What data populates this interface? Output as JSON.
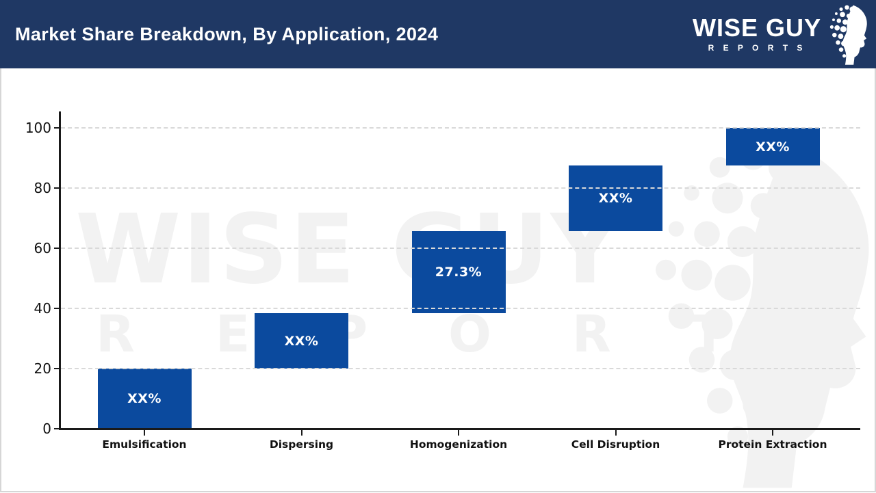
{
  "header": {
    "title": "Market Share Breakdown, By Application, 2024",
    "bg_color": "#1f3864",
    "logo": {
      "wordmark": "WISE GUY",
      "subtext": "R E P O R T S"
    }
  },
  "watermark": {
    "wordmark": "WISE GUY",
    "subtext": "R E P O R T S"
  },
  "chart_data": {
    "type": "bar",
    "subtype": "floating-waterfall",
    "title": "Market Share Breakdown, By Application, 2024",
    "categories": [
      "Emulsification",
      "Dispersing",
      "Homogenization",
      "Cell Disruption",
      "Protein Extraction"
    ],
    "segments": [
      {
        "category": "Emulsification",
        "start": 0,
        "end": 20,
        "label": "XX%"
      },
      {
        "category": "Dispersing",
        "start": 20,
        "end": 38.4,
        "label": "XX%"
      },
      {
        "category": "Homogenization",
        "start": 38.4,
        "end": 65.7,
        "label": "27.3%"
      },
      {
        "category": "Cell Disruption",
        "start": 65.7,
        "end": 87.5,
        "label": "XX%"
      },
      {
        "category": "Protein Extraction",
        "start": 87.5,
        "end": 100,
        "label": "XX%"
      }
    ],
    "yticks": [
      0,
      20,
      40,
      60,
      80,
      100
    ],
    "ylim": [
      0,
      105
    ],
    "xlabel": "",
    "ylabel": "",
    "grid": "horizontal-dashed-over-bars",
    "legend": "none",
    "colors": {
      "bar": "#0b4a9e",
      "bar_label": "#ffffff",
      "grid": "#d9d9d9",
      "axis": "#1a1a1a",
      "header_bg": "#1f3864"
    }
  }
}
